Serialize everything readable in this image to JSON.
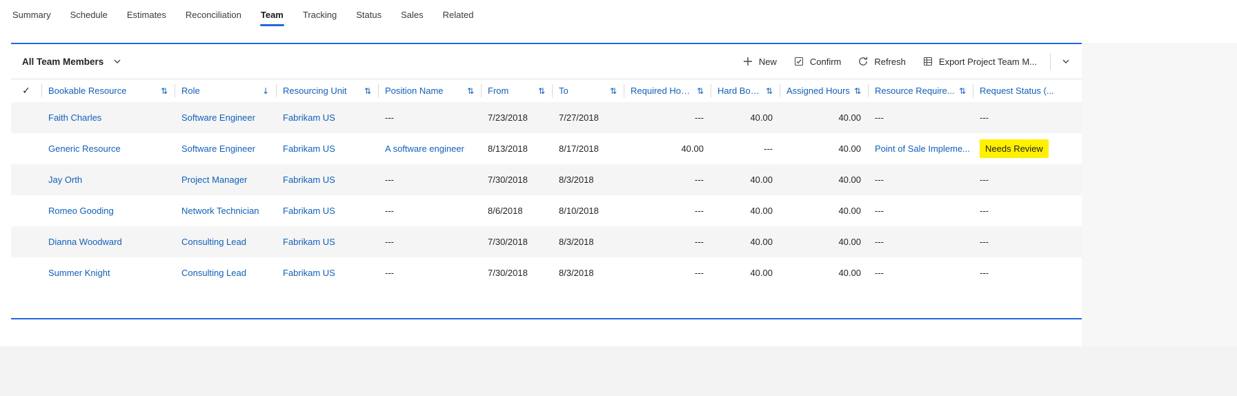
{
  "accent": {
    "panel_border": "#2266E3",
    "link": "#1160B7",
    "highlight": "#FFF100"
  },
  "tabs": {
    "items": [
      {
        "label": "Summary",
        "active": false
      },
      {
        "label": "Schedule",
        "active": false
      },
      {
        "label": "Estimates",
        "active": false
      },
      {
        "label": "Reconciliation",
        "active": false
      },
      {
        "label": "Team",
        "active": true
      },
      {
        "label": "Tracking",
        "active": false
      },
      {
        "label": "Status",
        "active": false
      },
      {
        "label": "Sales",
        "active": false
      },
      {
        "label": "Related",
        "active": false
      }
    ]
  },
  "view": {
    "label": "All Team Members"
  },
  "toolbar": {
    "buttons": [
      {
        "label": "New",
        "icon": "plus-icon"
      },
      {
        "label": "Confirm",
        "icon": "confirm-icon"
      },
      {
        "label": "Refresh",
        "icon": "refresh-icon"
      },
      {
        "label": "Export Project Team M...",
        "icon": "excel-icon"
      }
    ],
    "overflow_icon": "chevron-down-icon"
  },
  "grid": {
    "select_all_icon": "checkmark-icon",
    "columns": [
      {
        "label": "Bookable Resource",
        "sort": "both",
        "type": "link",
        "align": "left"
      },
      {
        "label": "Role",
        "sort": "down",
        "type": "link",
        "align": "left"
      },
      {
        "label": "Resourcing Unit",
        "sort": "both",
        "type": "link",
        "align": "left"
      },
      {
        "label": "Position Name",
        "sort": "both",
        "type": "link",
        "align": "left"
      },
      {
        "label": "From",
        "sort": "both",
        "type": "text",
        "align": "left"
      },
      {
        "label": "To",
        "sort": "both",
        "type": "text",
        "align": "left"
      },
      {
        "label": "Required Hours",
        "sort": "both",
        "type": "number",
        "align": "right"
      },
      {
        "label": "Hard Boo...",
        "sort": "both",
        "type": "number",
        "align": "right"
      },
      {
        "label": "Assigned Hours",
        "sort": "both",
        "type": "number",
        "align": "right"
      },
      {
        "label": "Resource Require...",
        "sort": "both",
        "type": "link",
        "align": "left"
      },
      {
        "label": "Request Status (...",
        "sort": "none",
        "type": "text",
        "align": "left"
      }
    ],
    "rows": [
      {
        "cells": [
          "Faith Charles",
          "Software Engineer",
          "Fabrikam US",
          "---",
          "7/23/2018",
          "7/27/2018",
          "---",
          "40.00",
          "40.00",
          "---",
          "---"
        ]
      },
      {
        "cells": [
          "Generic Resource",
          "Software Engineer",
          "Fabrikam US",
          "A software engineer",
          "8/13/2018",
          "8/17/2018",
          "40.00",
          "---",
          "40.00",
          "Point of Sale Impleme...",
          "Needs Review"
        ],
        "highlighted_cell": 10
      },
      {
        "cells": [
          "Jay Orth",
          "Project Manager",
          "Fabrikam US",
          "---",
          "7/30/2018",
          "8/3/2018",
          "---",
          "40.00",
          "40.00",
          "---",
          "---"
        ]
      },
      {
        "cells": [
          "Romeo Gooding",
          "Network Technician",
          "Fabrikam US",
          "---",
          "8/6/2018",
          "8/10/2018",
          "---",
          "40.00",
          "40.00",
          "---",
          "---"
        ]
      },
      {
        "cells": [
          "Dianna Woodward",
          "Consulting Lead",
          "Fabrikam US",
          "---",
          "7/30/2018",
          "8/3/2018",
          "---",
          "40.00",
          "40.00",
          "---",
          "---"
        ]
      },
      {
        "cells": [
          "Summer Knight",
          "Consulting Lead",
          "Fabrikam US",
          "---",
          "7/30/2018",
          "8/3/2018",
          "---",
          "40.00",
          "40.00",
          "---",
          "---"
        ]
      }
    ]
  }
}
